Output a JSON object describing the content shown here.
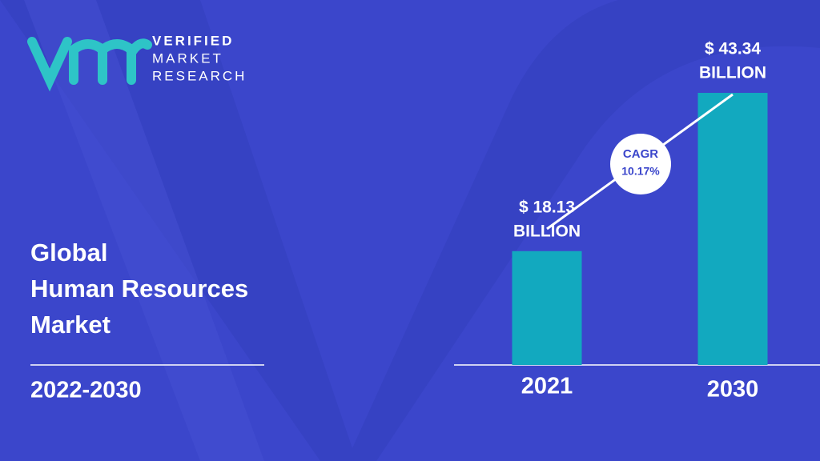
{
  "logo": {
    "lines": [
      "VERIFIED",
      "MARKET",
      "RESEARCH"
    ]
  },
  "chart_data": {
    "type": "bar",
    "title": [
      "Global",
      "Human Resources",
      "Market"
    ],
    "subtitle": "2022-2030",
    "categories": [
      "2021",
      "2030"
    ],
    "values": [
      18.13,
      43.34
    ],
    "value_labels": [
      [
        "$ 18.13",
        "BILLION"
      ],
      [
        "$ 43.34",
        "BILLION"
      ]
    ],
    "color": "#12a9bf",
    "ylim": [
      0,
      45
    ],
    "annotation": {
      "label": "CAGR",
      "value": "10.17%"
    }
  }
}
